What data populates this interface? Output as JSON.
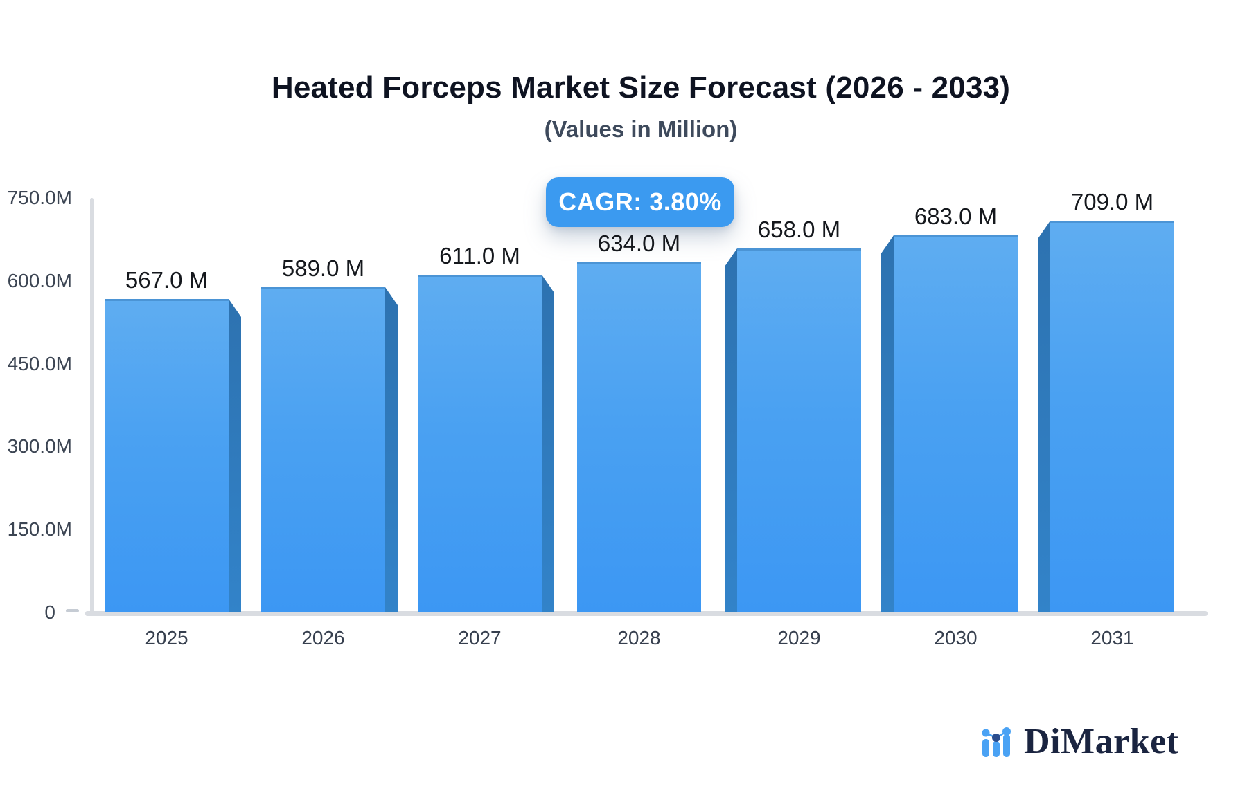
{
  "header": {
    "title": "Heated Forceps Market Size Forecast (2026 - 2033)",
    "subtitle": "(Values in Million)"
  },
  "cagr_badge": {
    "label": "CAGR: 3.80%",
    "bg_color": "#3b9af0",
    "text_color": "#ffffff"
  },
  "chart_data": {
    "type": "bar",
    "title": "Heated Forceps Market Size Forecast (2026 - 2033)",
    "subtitle": "(Values in Million)",
    "categories": [
      "2025",
      "2026",
      "2027",
      "2028",
      "2029",
      "2030",
      "2031"
    ],
    "values": [
      567,
      589,
      611,
      634,
      658,
      683,
      709
    ],
    "value_labels": [
      "567.0 M",
      "589.0 M",
      "611.0 M",
      "634.0 M",
      "658.0 M",
      "683.0 M",
      "709.0 M"
    ],
    "xlabel": "",
    "ylabel": "",
    "ylim": [
      0,
      750
    ],
    "yticks": [
      {
        "value": 750,
        "label": "750.0M"
      },
      {
        "value": 600,
        "label": "600.0M"
      },
      {
        "value": 450,
        "label": "450.0M"
      },
      {
        "value": 300,
        "label": "300.0M"
      },
      {
        "value": 150,
        "label": "150.0M"
      },
      {
        "value": 0,
        "label": "0"
      }
    ],
    "grid": false,
    "legend": false,
    "bar_color_top": "#5fadf1",
    "bar_color_mid": "#4aa1f2",
    "bar_color_bottom": "#3c97f3",
    "bar_side_color_top": "#2d72b0",
    "bar_side_color_bottom": "#3283c9",
    "axis_color": "#d9dce1",
    "tick_text_color": "#3c4553"
  },
  "branding": {
    "name": "DiMarket",
    "icon": "bar-chart-logo-icon",
    "text_color": "#1a2440",
    "icon_color": "#4aa2f4",
    "icon_accent": "#2b4d8e"
  }
}
